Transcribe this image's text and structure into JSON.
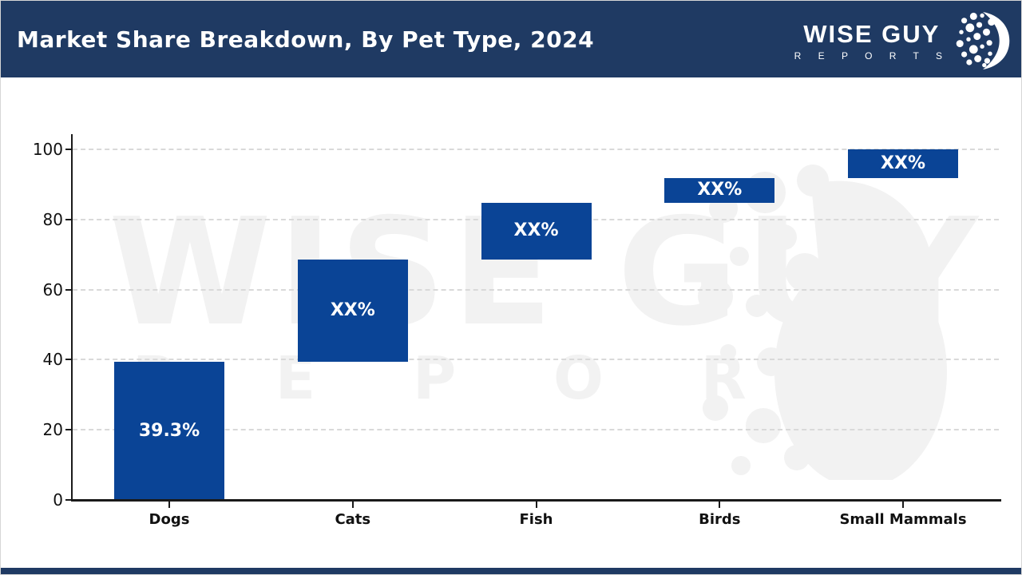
{
  "header": {
    "title": "Market Share Breakdown, By Pet Type, 2024",
    "bg_color": "#1f3a63",
    "logo": {
      "line1": "WISE GUY",
      "line2": "R E P O R T S"
    }
  },
  "watermark": {
    "line1": "WISE GUY",
    "line2": "R E P O R T S"
  },
  "footer": {
    "bg_color": "#1f3a63"
  },
  "chart_data": {
    "type": "bar",
    "subtype": "waterfall-floating-bars",
    "title": "Market Share Breakdown, By Pet Type, 2024",
    "categories": [
      "Dogs",
      "Cats",
      "Fish",
      "Birds",
      "Small Mammals"
    ],
    "segments": [
      {
        "category": "Dogs",
        "start": 0,
        "end": 39.3,
        "value_label": "39.3%"
      },
      {
        "category": "Cats",
        "start": 39.3,
        "end": 68.6,
        "value_label": "XX%"
      },
      {
        "category": "Fish",
        "start": 68.6,
        "end": 84.8,
        "value_label": "XX%"
      },
      {
        "category": "Birds",
        "start": 84.8,
        "end": 91.8,
        "value_label": "XX%"
      },
      {
        "category": "Small Mammals",
        "start": 91.8,
        "end": 100,
        "value_label": "XX%"
      }
    ],
    "xlabel": "",
    "ylabel": "",
    "ylim": [
      0,
      105
    ],
    "y_ticks": [
      0,
      20,
      40,
      60,
      80,
      100
    ],
    "grid": "horizontal-dashed",
    "legend": "none",
    "bar_color": "#0a4496",
    "value_label_color": "#ffffff",
    "grid_color": "#d9d9d9"
  }
}
